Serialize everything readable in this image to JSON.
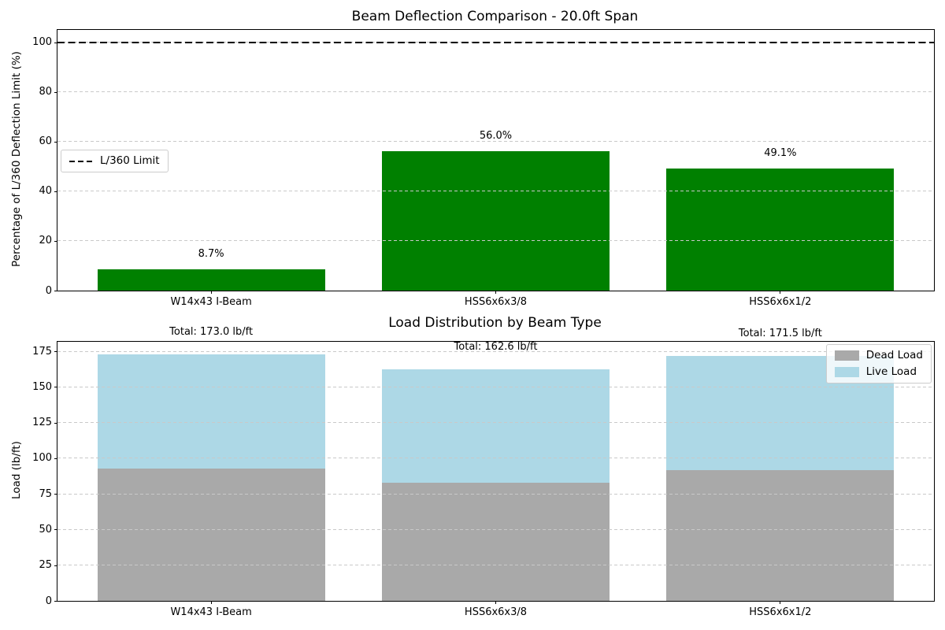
{
  "chart_data": [
    {
      "type": "bar",
      "title": "Beam Deflection Comparison - 20.0ft Span",
      "ylabel": "Percentage of L/360 Deflection Limit (%)",
      "xlabel": "",
      "categories": [
        "W14x43 I-Beam",
        "HSS6x6x3/8",
        "HSS6x6x1/2"
      ],
      "values": [
        8.7,
        56.0,
        49.1
      ],
      "value_labels": [
        "8.7%",
        "56.0%",
        "49.1%"
      ],
      "bar_color": "#008000",
      "yticks": [
        0,
        20,
        40,
        60,
        80,
        100
      ],
      "ylim": [
        0,
        105
      ],
      "grid": "dashed-horizontal",
      "reference_line": {
        "value": 100,
        "label": "L/360 Limit",
        "color": "#000000",
        "style": "dashed"
      },
      "legend": {
        "position": "center-left",
        "entries": [
          {
            "label": "L/360 Limit",
            "swatch": "dashed-line",
            "color": "#000000"
          }
        ]
      }
    },
    {
      "type": "stacked-bar",
      "title": "Load Distribution by Beam Type",
      "ylabel": "Load (lb/ft)",
      "xlabel": "",
      "categories": [
        "W14x43 I-Beam",
        "HSS6x6x3/8",
        "HSS6x6x1/2"
      ],
      "series": [
        {
          "name": "Dead Load",
          "color": "#a9a9a9",
          "values": [
            93.0,
            82.6,
            91.5
          ]
        },
        {
          "name": "Live Load",
          "color": "#add8e6",
          "values": [
            80.0,
            80.0,
            80.0
          ]
        }
      ],
      "totals": [
        173.0,
        162.6,
        171.5
      ],
      "total_labels": [
        "Total: 173.0 lb/ft",
        "Total: 162.6 lb/ft",
        "Total: 171.5 lb/ft"
      ],
      "yticks": [
        0,
        25,
        50,
        75,
        100,
        125,
        150,
        175
      ],
      "ylim": [
        0,
        181.65
      ],
      "grid": "dashed-horizontal",
      "legend": {
        "position": "upper-right",
        "entries": [
          {
            "label": "Dead Load",
            "swatch": "patch",
            "color": "#a9a9a9"
          },
          {
            "label": "Live Load",
            "swatch": "patch",
            "color": "#add8e6"
          }
        ]
      }
    }
  ]
}
